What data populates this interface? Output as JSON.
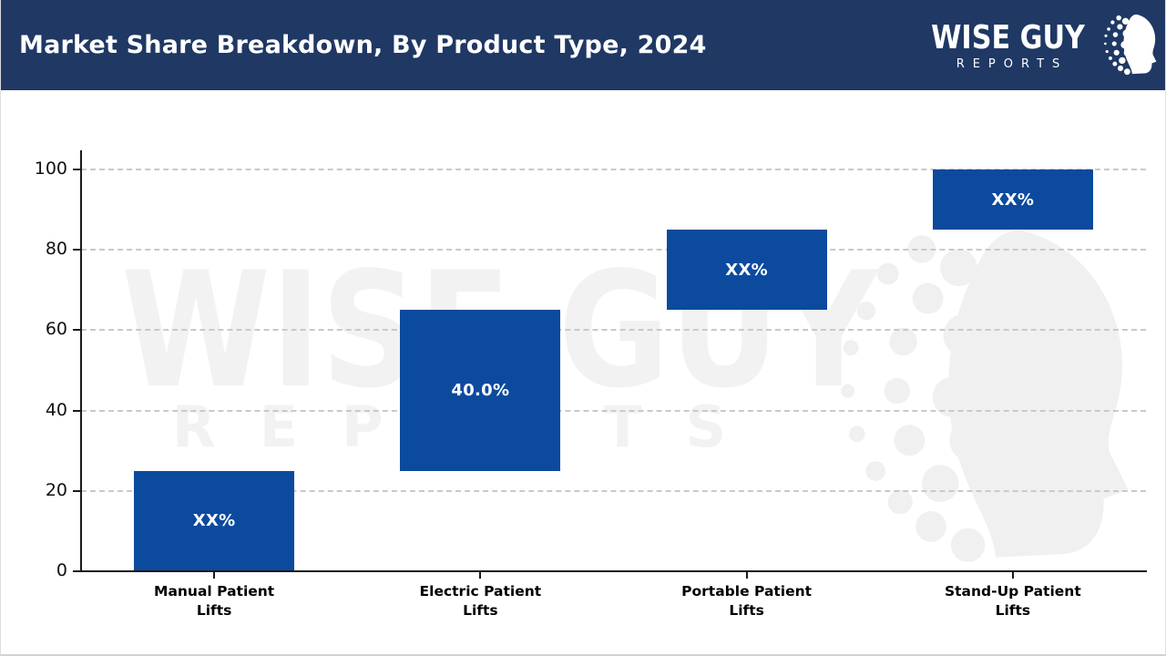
{
  "header": {
    "title": "Market Share Breakdown, By Product Type, 2024",
    "logo": {
      "wordmark": "WISE GUY",
      "subtext": "REPORTS"
    }
  },
  "watermark": {
    "wordmark": "WISE GUY",
    "subtext": "REPORTS"
  },
  "colors": {
    "header_bg": "#1f3864",
    "bar_blue": "#0c4a9e",
    "gridline": "#c9c9c9",
    "axis": "#1a1a1a",
    "watermark": "#f2f2f2",
    "title_text": "#ffffff"
  },
  "chart_data": {
    "type": "bar",
    "subtype": "floating-segment-percentage",
    "title": "Market Share Breakdown, By Product Type, 2024",
    "categories": [
      "Manual Patient Lifts",
      "Electric Patient Lifts",
      "Portable Patient Lifts",
      "Stand-Up Patient Lifts"
    ],
    "bars": [
      {
        "category": "Manual Patient Lifts",
        "from": 0,
        "to": 25,
        "size": 25,
        "label": "XX%"
      },
      {
        "category": "Electric Patient Lifts",
        "from": 25,
        "to": 65,
        "size": 40,
        "label": "40.0%"
      },
      {
        "category": "Portable Patient Lifts",
        "from": 65,
        "to": 85,
        "size": 20,
        "label": "XX%"
      },
      {
        "category": "Stand-Up Patient Lifts",
        "from": 85,
        "to": 100,
        "size": 15,
        "label": "XX%"
      }
    ],
    "xlabel": "",
    "ylabel": "",
    "ylim": [
      0,
      100
    ],
    "yticks": [
      0,
      20,
      40,
      60,
      80,
      100
    ],
    "grid": "horizontal-dashed",
    "legend": "none",
    "bar_color": "#0c4a9e"
  }
}
